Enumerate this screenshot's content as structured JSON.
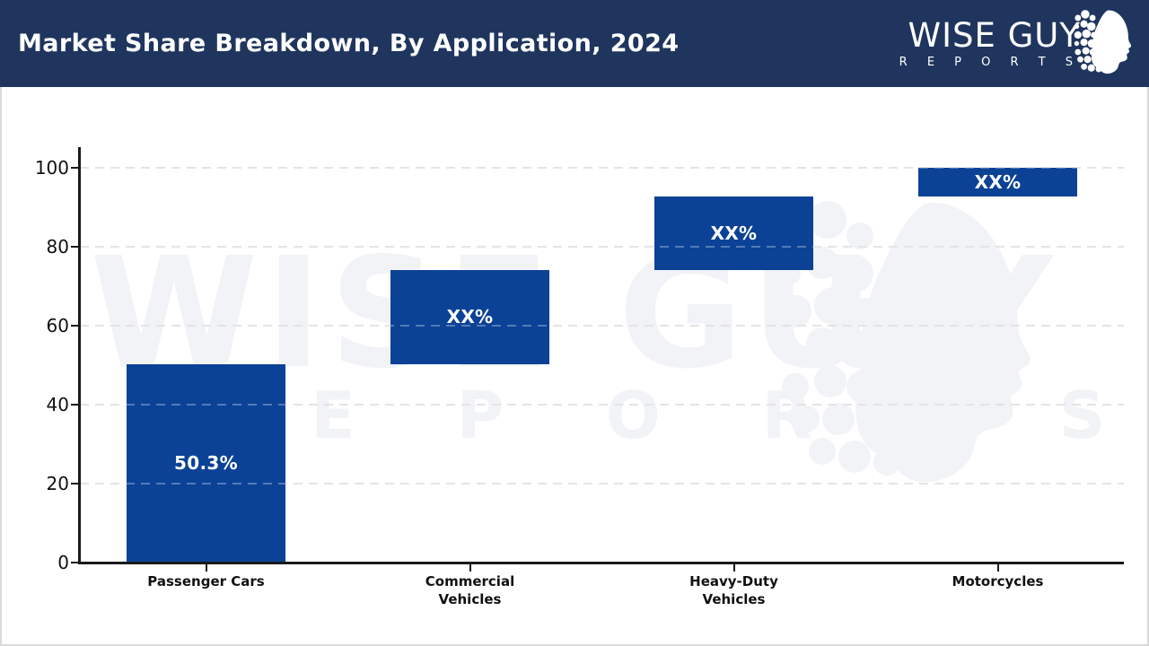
{
  "header": {
    "title": "Market Share Breakdown, By Application, 2024",
    "logo": {
      "line1": "WISE GUY",
      "line2": "R E P O R T S"
    }
  },
  "watermark": {
    "line1": "WISE GU Y",
    "line2": "R E P O R T S"
  },
  "colors": {
    "header_bg": "#1f355e",
    "bar": "#0b4296",
    "bar_label": "#ffffff",
    "grid": "#d9d9d9",
    "axis": "#1a1a1a",
    "watermark": "#f1f3f6"
  },
  "chart_data": {
    "type": "bar",
    "subtype": "waterfall",
    "title": "Market Share Breakdown, By Application, 2024",
    "xlabel": "",
    "ylabel": "",
    "ylim": [
      0,
      105
    ],
    "y_ticks": [
      0,
      20,
      40,
      60,
      80,
      100
    ],
    "grid": "dashed-horizontal",
    "legend": false,
    "bar_color": "#0b4296",
    "categories": [
      {
        "name": "Passenger Cars",
        "lines": [
          "Passenger Cars"
        ]
      },
      {
        "name": "Commercial Vehicles",
        "lines": [
          "Commercial",
          "Vehicles"
        ]
      },
      {
        "name": "Heavy-Duty Vehicles",
        "lines": [
          "Heavy-Duty",
          "Vehicles"
        ]
      },
      {
        "name": "Motorcycles",
        "lines": [
          "Motorcycles"
        ]
      }
    ],
    "segments": [
      {
        "category": "Passenger Cars",
        "start": 0,
        "end": 50.3,
        "bar_label": "50.3%"
      },
      {
        "category": "Commercial Vehicles",
        "start": 50.3,
        "end": 74.2,
        "bar_label": "XX%"
      },
      {
        "category": "Heavy-Duty Vehicles",
        "start": 74.2,
        "end": 92.7,
        "bar_label": "XX%"
      },
      {
        "category": "Motorcycles",
        "start": 92.7,
        "end": 100,
        "bar_label": "XX%"
      }
    ]
  }
}
